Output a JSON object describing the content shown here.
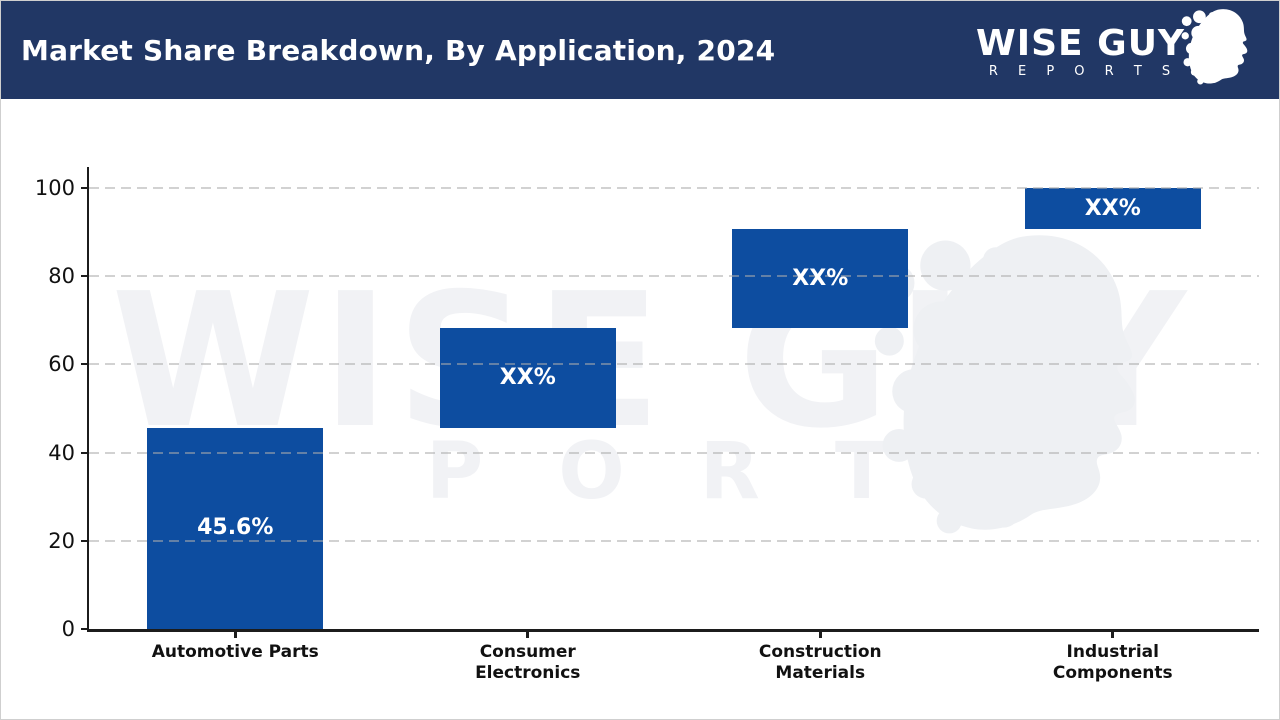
{
  "header": {
    "title": "Market Share Breakdown, By Application, 2024",
    "logo": {
      "line1": "WISE GUY",
      "line2": "R E P O R T S"
    }
  },
  "watermark": {
    "line1": "WISE GUY",
    "line2": "P O R T S"
  },
  "colors": {
    "header_background": "#213765",
    "bar": "#0d4da0",
    "bar_label": "#ffffff",
    "axis": "#1c1c1c",
    "gridline": "#d9d9d9",
    "watermark": "#f1f2f5"
  },
  "chart_data": {
    "type": "bar",
    "subtype": "waterfall",
    "title": "Market Share Breakdown, By Application, 2024",
    "categories": [
      "Automotive Parts",
      "Consumer Electronics",
      "Construction Materials",
      "Industrial Components"
    ],
    "category_lines": [
      [
        "Automotive Parts"
      ],
      [
        "Consumer",
        "Electronics"
      ],
      [
        "Construction",
        "Materials"
      ],
      [
        "Industrial",
        "Components"
      ]
    ],
    "segments": [
      {
        "category": "Automotive Parts",
        "start": 0,
        "end": 45.6,
        "label": "45.6%"
      },
      {
        "category": "Consumer Electronics",
        "start": 45.6,
        "end": 68.2,
        "label": "XX%"
      },
      {
        "category": "Construction Materials",
        "start": 68.2,
        "end": 90.7,
        "label": "XX%"
      },
      {
        "category": "Industrial Components",
        "start": 90.7,
        "end": 100,
        "label": "XX%"
      }
    ],
    "xlabel": "",
    "ylabel": "",
    "ylim": [
      0,
      100
    ],
    "yticks": [
      0,
      20,
      40,
      60,
      80,
      100
    ],
    "grid": "horizontal-dashed",
    "legend": "none"
  }
}
